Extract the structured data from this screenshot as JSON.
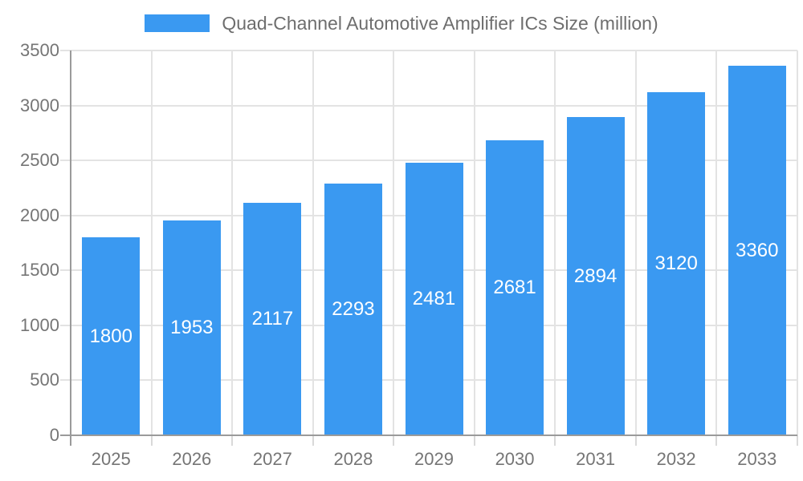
{
  "legend": {
    "position": "top",
    "label": "Quad-Channel Automotive Amplifier ICs Size (million)"
  },
  "chart_data": {
    "type": "bar",
    "title": "Quad-Channel Automotive Amplifier ICs Size (million)",
    "series_name": "Quad-Channel Automotive Amplifier ICs Size (million)",
    "categories": [
      "2025",
      "2026",
      "2027",
      "2028",
      "2029",
      "2030",
      "2031",
      "2032",
      "2033"
    ],
    "values": [
      1800,
      1953,
      2117,
      2293,
      2481,
      2681,
      2894,
      3120,
      3360
    ],
    "xlabel": "",
    "ylabel": "",
    "ylim": [
      0,
      3500
    ],
    "ytick_step": 500,
    "yticks": [
      0,
      500,
      1000,
      1500,
      2000,
      2500,
      3000,
      3500
    ],
    "grid": true,
    "legend_position": "top",
    "value_labels": "inside-center",
    "colors": {
      "bar": "#3a99f1",
      "value_label": "#ffffff",
      "gridline": "#e3e3e3",
      "axis_line": "#9a9a9a",
      "tick_mark": "#d9d9d9",
      "tick_label": "#757575",
      "title_text": "#6e6e6e",
      "background": "#ffffff"
    }
  }
}
